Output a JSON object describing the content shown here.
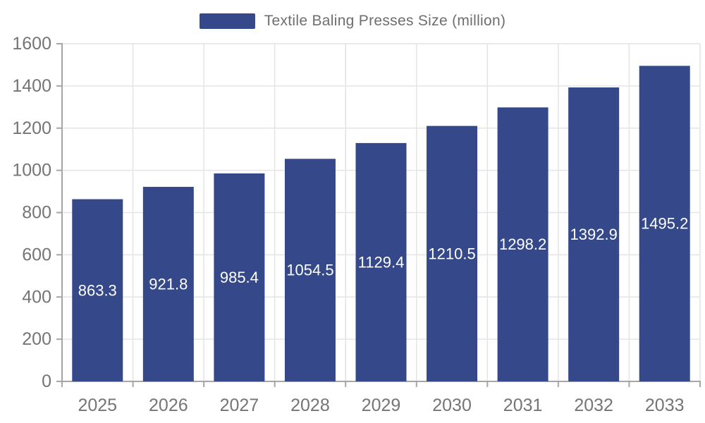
{
  "legend": {
    "label": "Textile Baling Presses Size (million)",
    "swatch_color": "#35498a"
  },
  "chart_data": {
    "type": "bar",
    "title": "Textile Baling Presses Size (million)",
    "series_name": "Textile Baling Presses Size (million)",
    "categories": [
      "2025",
      "2026",
      "2027",
      "2028",
      "2029",
      "2030",
      "2031",
      "2032",
      "2033"
    ],
    "values": [
      863.3,
      921.8,
      985.4,
      1054.5,
      1129.4,
      1210.5,
      1298.2,
      1392.9,
      1495.2
    ],
    "value_labels": [
      "863.3",
      "921.8",
      "985.4",
      "1054.5",
      "1129.4",
      "1210.5",
      "1298.2",
      "1392.9",
      "1495.2"
    ],
    "xlabel": "",
    "ylabel": "",
    "ylim": [
      0,
      1600
    ],
    "yticks": [
      0,
      200,
      400,
      600,
      800,
      1000,
      1200,
      1400,
      1600
    ],
    "grid": true,
    "legend_position": "top",
    "colors": {
      "bar_fill": "#35498a",
      "value_label": "#ffffff",
      "axis_label": "#757575",
      "axis_line": "#a6a6a6",
      "grid_line": "#e4e4e4",
      "background": "#ffffff"
    }
  }
}
